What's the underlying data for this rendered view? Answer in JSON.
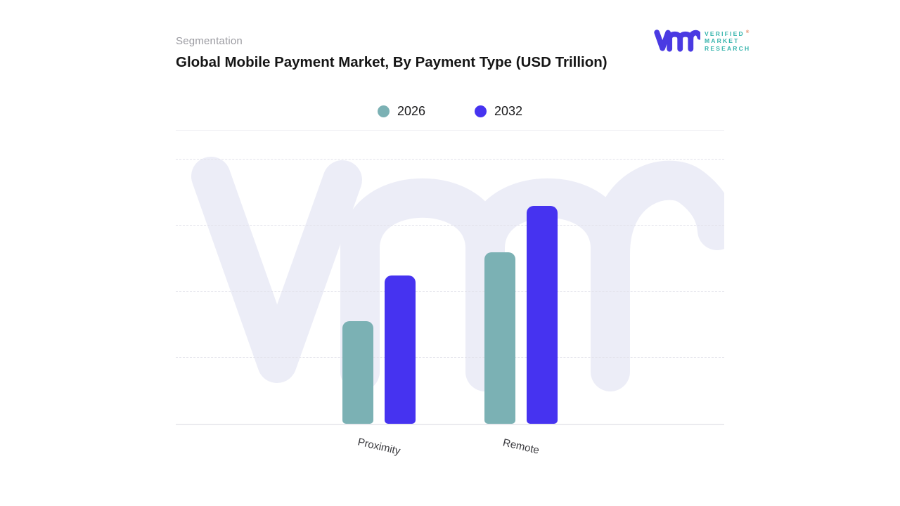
{
  "header": {
    "eyebrow": "Segmentation",
    "title": "Global Mobile Payment Market, By Payment Type (USD Trillion)"
  },
  "brand": {
    "name": "Verified Market Research",
    "lines": [
      "VERIFIED",
      "MARKET",
      "RESEARCH"
    ],
    "registered_mark": "®",
    "mark_color": "#4a3ae2",
    "text_color": "#35b4ac"
  },
  "chart_data": {
    "type": "bar",
    "title": "Global Mobile Payment Market, By Payment Type (USD Trillion)",
    "categories": [
      "Proximity",
      "Remote"
    ],
    "series": [
      {
        "name": "2026",
        "color": "#7bb1b4",
        "values": [
          1.55,
          2.6
        ]
      },
      {
        "name": "2032",
        "color": "#4633f0",
        "values": [
          2.25,
          3.3
        ]
      }
    ],
    "xlabel": "",
    "ylabel": "USD Trillion",
    "ylim": [
      0,
      4.45
    ],
    "gridline_values": [
      1,
      2,
      3,
      4
    ],
    "grid": "horizontal-dashed",
    "legend_position": "top-center",
    "value_labels": false,
    "values_estimated_from_gridlines": true
  },
  "watermark": {
    "glyph": "vmr",
    "color": "#ecedf7"
  }
}
